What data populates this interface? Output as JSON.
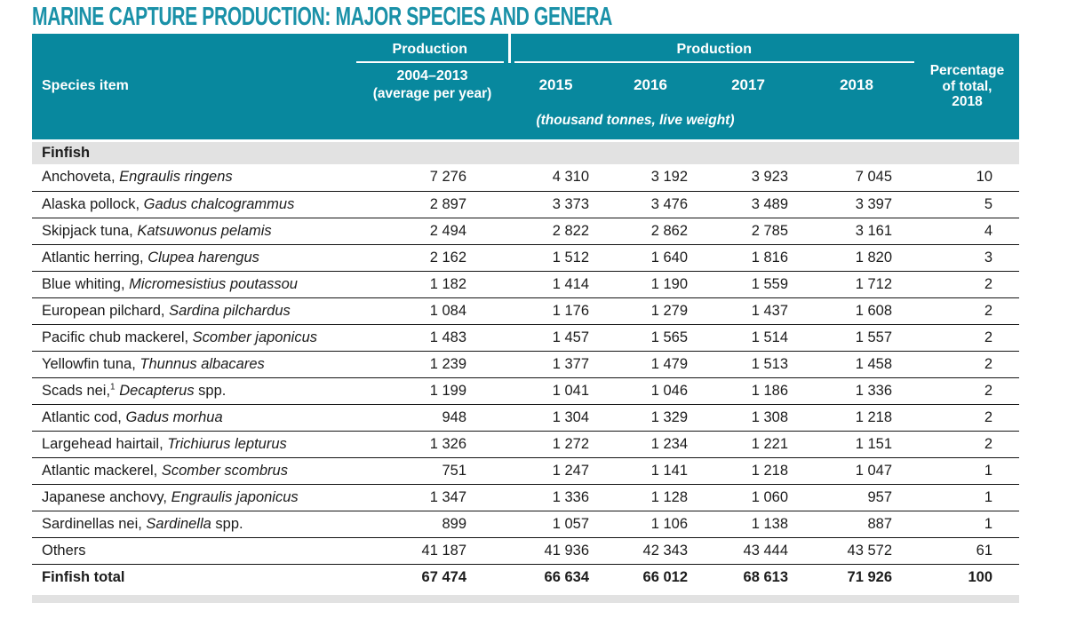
{
  "page": {
    "title": "MARINE CAPTURE PRODUCTION: MAJOR SPECIES AND GENERA"
  },
  "colors": {
    "accent_teal": "#08889e",
    "title_teal": "#1a91a8",
    "section_band_gray": "#e2e2e2",
    "row_line_black": "#141414"
  },
  "table": {
    "header": {
      "species": "Species item",
      "production": "Production",
      "avg_line1": "2004–2013",
      "avg_line2": "(average per year)",
      "years": [
        "2015",
        "2016",
        "2017",
        "2018"
      ],
      "pct_lines": [
        "Percentage",
        "of total,",
        "2018"
      ],
      "unit_note": "(thousand tonnes, live weight)"
    },
    "section_label": "Finfish",
    "rows": [
      {
        "name": "Anchoveta,",
        "sup": "",
        "sci": "Engraulis ringens",
        "suffix": "",
        "bold": false,
        "values": [
          "7 276",
          "4 310",
          "3 192",
          "3 923",
          "7 045",
          "10"
        ]
      },
      {
        "name": "Alaska pollock,",
        "sup": "",
        "sci": "Gadus chalcogrammus",
        "suffix": "",
        "bold": false,
        "values": [
          "2 897",
          "3 373",
          "3 476",
          "3 489",
          "3 397",
          "5"
        ]
      },
      {
        "name": "Skipjack tuna,",
        "sup": "",
        "sci": "Katsuwonus pelamis",
        "suffix": "",
        "bold": false,
        "values": [
          "2 494",
          "2 822",
          "2 862",
          "2 785",
          "3 161",
          "4"
        ]
      },
      {
        "name": "Atlantic herring,",
        "sup": "",
        "sci": "Clupea harengus",
        "suffix": "",
        "bold": false,
        "values": [
          "2 162",
          "1 512",
          "1 640",
          "1 816",
          "1 820",
          "3"
        ]
      },
      {
        "name": "Blue whiting,",
        "sup": "",
        "sci": "Micromesistius poutassou",
        "suffix": "",
        "bold": false,
        "values": [
          "1 182",
          "1 414",
          "1 190",
          "1 559",
          "1 712",
          "2"
        ]
      },
      {
        "name": "European pilchard,",
        "sup": "",
        "sci": "Sardina pilchardus",
        "suffix": "",
        "bold": false,
        "values": [
          "1 084",
          "1 176",
          "1 279",
          "1 437",
          "1 608",
          "2"
        ]
      },
      {
        "name": "Pacific chub mackerel,",
        "sup": "",
        "sci": "Scomber japonicus",
        "suffix": "",
        "bold": false,
        "values": [
          "1 483",
          "1 457",
          "1 565",
          "1 514",
          "1 557",
          "2"
        ]
      },
      {
        "name": "Yellowfin tuna,",
        "sup": "",
        "sci": "Thunnus albacares",
        "suffix": "",
        "bold": false,
        "values": [
          "1 239",
          "1 377",
          "1 479",
          "1 513",
          "1 458",
          "2"
        ]
      },
      {
        "name": "Scads nei,",
        "sup": "1",
        "sci": "Decapterus",
        "suffix": " spp.",
        "bold": false,
        "values": [
          "1 199",
          "1 041",
          "1 046",
          "1 186",
          "1 336",
          "2"
        ]
      },
      {
        "name": "Atlantic cod,",
        "sup": "",
        "sci": "Gadus morhua",
        "suffix": "",
        "bold": false,
        "values": [
          "948",
          "1 304",
          "1 329",
          "1 308",
          "1 218",
          "2"
        ]
      },
      {
        "name": "Largehead hairtail,",
        "sup": "",
        "sci": "Trichiurus lepturus",
        "suffix": "",
        "bold": false,
        "values": [
          "1 326",
          "1 272",
          "1 234",
          "1 221",
          "1 151",
          "2"
        ]
      },
      {
        "name": "Atlantic mackerel,",
        "sup": "",
        "sci": "Scomber scombrus",
        "suffix": "",
        "bold": false,
        "values": [
          "751",
          "1 247",
          "1 141",
          "1 218",
          "1 047",
          "1"
        ]
      },
      {
        "name": "Japanese anchovy,",
        "sup": "",
        "sci": "Engraulis japonicus",
        "suffix": "",
        "bold": false,
        "values": [
          "1 347",
          "1 336",
          "1 128",
          "1 060",
          "957",
          "1"
        ]
      },
      {
        "name": "Sardinellas nei,",
        "sup": "",
        "sci": "Sardinella",
        "suffix": " spp.",
        "bold": false,
        "values": [
          "899",
          "1 057",
          "1 106",
          "1 138",
          "887",
          "1"
        ]
      },
      {
        "name": "Others",
        "sup": "",
        "sci": "",
        "suffix": "",
        "bold": false,
        "values": [
          "41 187",
          "41 936",
          "42 343",
          "43 444",
          "43 572",
          "61"
        ]
      },
      {
        "name": "Finfish total",
        "sup": "",
        "sci": "",
        "suffix": "",
        "bold": true,
        "values": [
          "67 474",
          "66 634",
          "66 012",
          "68 613",
          "71 926",
          "100"
        ]
      }
    ]
  }
}
